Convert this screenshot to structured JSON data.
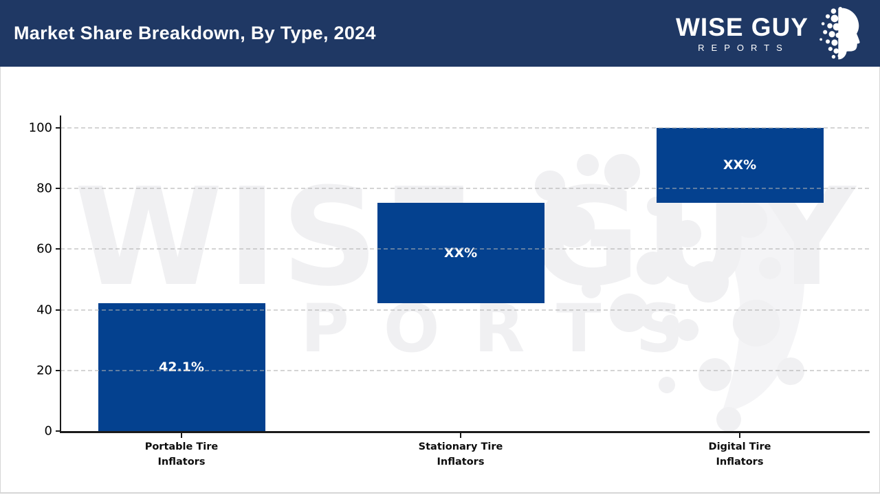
{
  "header": {
    "title": "Market Share Breakdown, By Type, 2024",
    "logo_line1": "WISE GUY",
    "logo_line2": "REPORTS"
  },
  "watermark": {
    "line1": "WISE GUY",
    "line2": "REPORTS"
  },
  "chart_data": {
    "type": "bar",
    "variant": "stacked-waterfall-segments",
    "title": "Market Share Breakdown, By Type, 2024",
    "categories": [
      "Portable Tire\nInflators",
      "Stationary Tire\nInflators",
      "Digital Tire\nInflators"
    ],
    "segments": [
      {
        "category": "Portable Tire Inflators",
        "start": 0,
        "end": 42.1,
        "label": "42.1%"
      },
      {
        "category": "Stationary Tire Inflators",
        "start": 42.1,
        "end": 75.3,
        "label": "XX%"
      },
      {
        "category": "Digital Tire Inflators",
        "start": 75.3,
        "end": 100,
        "label": "XX%"
      }
    ],
    "yticks": [
      0,
      20,
      40,
      60,
      80,
      100
    ],
    "ylim": [
      0,
      104
    ],
    "grid": true,
    "grid_style": "dashed",
    "legend_position": "none",
    "colors": {
      "bar": "#04418f",
      "bar_label": "#ffffff",
      "header_bg": "#1f3864",
      "grid": "#b0b0b0",
      "axis": "#1a1a1a",
      "tick_text": "#000000",
      "watermark": "#f0f0f2"
    }
  }
}
